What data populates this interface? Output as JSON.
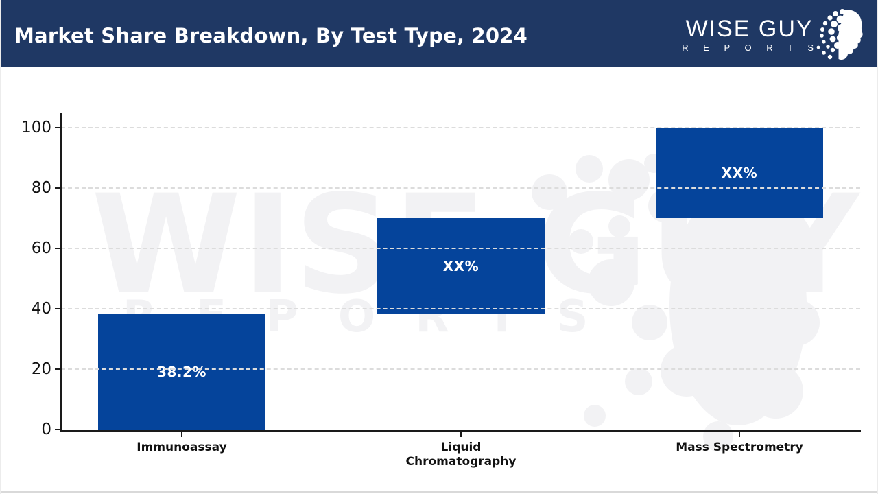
{
  "header": {
    "title": "Market Share Breakdown, By Test Type, 2024",
    "logo": {
      "wordmark": "WISE GUY",
      "subtext": "R E P O R T S"
    }
  },
  "watermark": {
    "line1": "WISE GUY",
    "line2": "REPORTS"
  },
  "colors": {
    "header_bg": "#1f3864",
    "bar": "#05449b",
    "grid": "#dcdcdc",
    "axis": "#1a1a1a",
    "bar_label": "#ffffff",
    "watermark": "#f2f2f4"
  },
  "chart_data": {
    "type": "bar",
    "variant": "floating-waterfall",
    "title": "Market Share Breakdown, By Test Type, 2024",
    "categories": [
      "Immunoassay",
      "Liquid\nChromatography",
      "Mass Spectrometry"
    ],
    "series": [
      {
        "segments": [
          {
            "category": "Immunoassay",
            "start": 0,
            "end": 38.2,
            "label": "38.2%"
          },
          {
            "category": "Liquid Chromatography",
            "start": 38.2,
            "end": 70,
            "label": "XX%"
          },
          {
            "category": "Mass Spectrometry",
            "start": 70,
            "end": 100,
            "label": "XX%"
          }
        ]
      }
    ],
    "xlabel": "",
    "ylabel": "",
    "ylim": [
      0,
      100
    ],
    "yticks": [
      0,
      20,
      40,
      60,
      80,
      100
    ],
    "grid": {
      "horizontal": true,
      "style": "dashed",
      "drawn_over_bars": true
    },
    "legend": "none"
  }
}
